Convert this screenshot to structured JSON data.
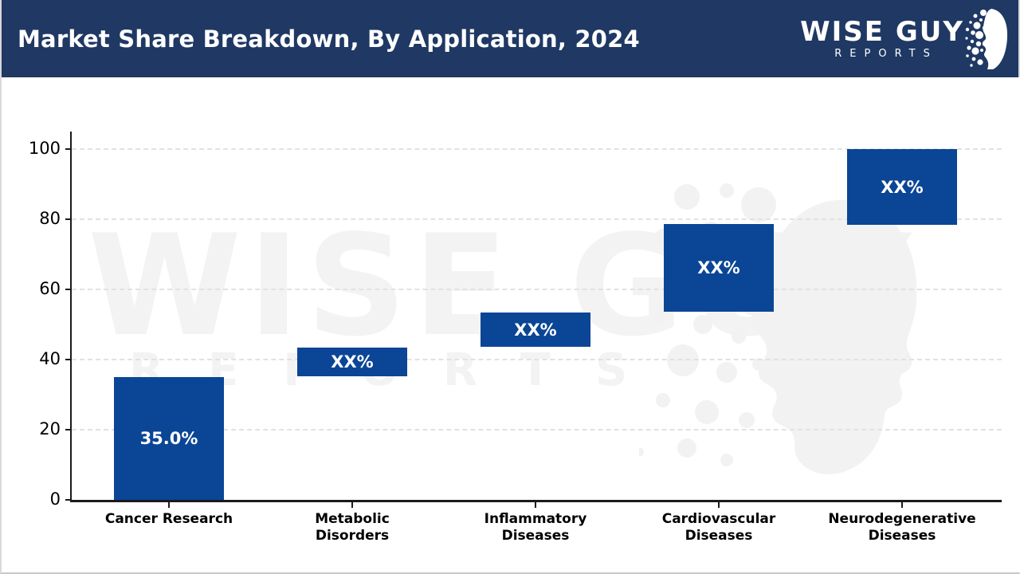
{
  "header": {
    "title": "Market Share Breakdown, By Application, 2024",
    "logo": {
      "line1": "WISE GUY",
      "line2": "REPORTS"
    }
  },
  "watermark": {
    "line1": "WISE GUY",
    "line2": "REPORTS"
  },
  "colors": {
    "header_bg": "#1f3864",
    "bar": "#0b4596",
    "bar_label": "#ffffff",
    "gridline": "#e2e2e2",
    "axis": "#1a1a1a",
    "watermark": "#f3f3f3"
  },
  "chart_data": {
    "type": "bar",
    "subtype": "waterfall",
    "title": "Market Share Breakdown, By Application, 2024",
    "categories": [
      "Cancer Research",
      "Metabolic\nDisorders",
      "Inflammatory\nDiseases",
      "Cardiovascular\nDiseases",
      "Neurodegenerative\nDiseases"
    ],
    "segments": [
      {
        "category": "Cancer Research",
        "start": 0,
        "end": 35,
        "label": "35.0%"
      },
      {
        "category": "Metabolic Disorders",
        "start": 35.2,
        "end": 43.4,
        "label": "XX%"
      },
      {
        "category": "Inflammatory Diseases",
        "start": 43.6,
        "end": 53.3,
        "label": "XX%"
      },
      {
        "category": "Cardiovascular Diseases",
        "start": 53.6,
        "end": 78.6,
        "label": "XX%"
      },
      {
        "category": "Neurodegenerative Diseases",
        "start": 78.3,
        "end": 100,
        "label": "XX%"
      }
    ],
    "yticks": [
      0,
      20,
      40,
      60,
      80,
      100
    ],
    "ylim": [
      0,
      105
    ],
    "xlabel": "",
    "ylabel": "",
    "grid": "dashed-horizontal",
    "legend": "none",
    "bar_color": "#0b4596",
    "label_color": "#ffffff"
  }
}
